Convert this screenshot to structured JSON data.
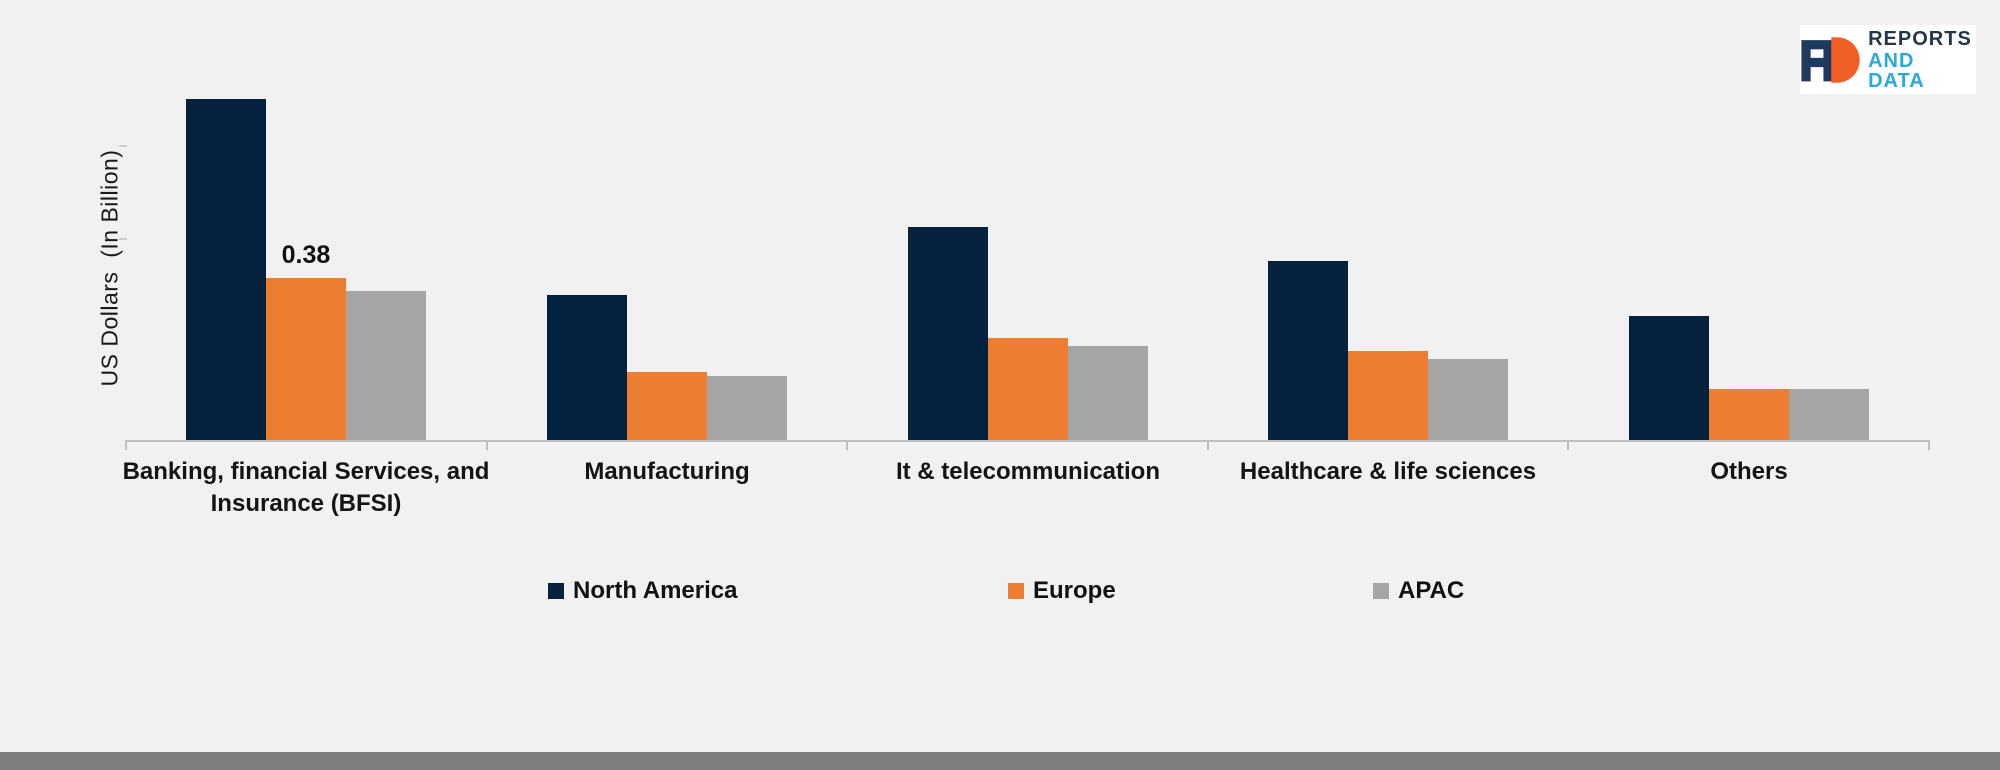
{
  "page": {
    "background_color": "#f1f1f2",
    "footer_color": "#7f7f7f"
  },
  "logo": {
    "line1": "REPORTS",
    "line2": "AND DATA",
    "monogram_r_color": "#1e3a5f",
    "monogram_d_color": "#f05f26",
    "line1_color": "#24364a",
    "line2_color": "#2aa9df"
  },
  "chart_data": {
    "type": "bar",
    "title": "",
    "xlabel": "",
    "ylabel": "US Dollars  (In Billion)",
    "ylim": [
      0,
      0.85
    ],
    "grid": false,
    "legend_position": "bottom",
    "axis_color": "#bfbfbf",
    "categories": [
      "Banking, financial Services, and Insurance (BFSI)",
      "Manufacturing",
      "It & telecommunication",
      "Healthcare & life sciences",
      "Others"
    ],
    "series": [
      {
        "name": "North America",
        "color": "#04213d",
        "values": [
          0.8,
          0.34,
          0.5,
          0.42,
          0.29
        ]
      },
      {
        "name": "Europe",
        "color": "#ed7d31",
        "values": [
          0.38,
          0.16,
          0.24,
          0.21,
          0.12
        ]
      },
      {
        "name": "APAC",
        "color": "#a5a5a5",
        "values": [
          0.35,
          0.15,
          0.22,
          0.19,
          0.12
        ]
      }
    ],
    "data_labels": [
      {
        "series": 1,
        "category": 0,
        "text": "0.38"
      }
    ]
  }
}
